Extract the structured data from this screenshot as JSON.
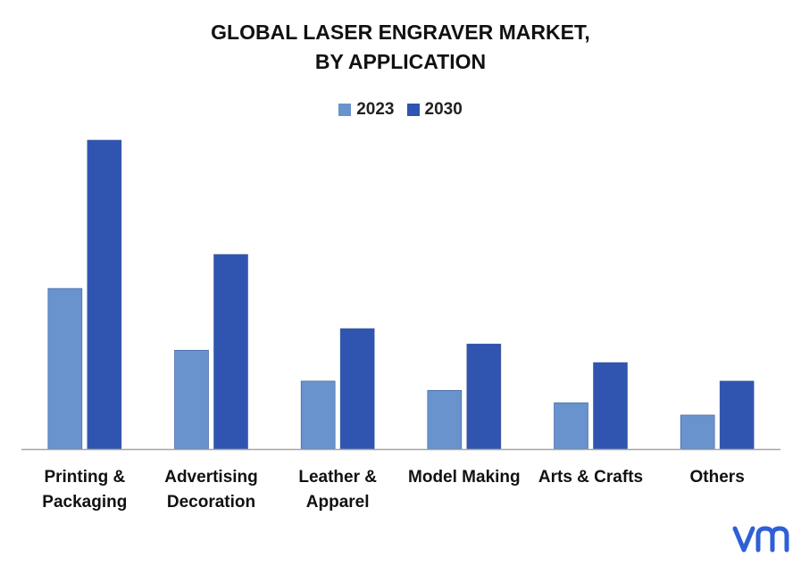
{
  "chart_data": {
    "type": "bar",
    "title_lines": [
      "GLOBAL LASER ENGRAVER MARKET,",
      "BY APPLICATION"
    ],
    "categories": [
      [
        "Printing &",
        "Packaging"
      ],
      [
        "Advertising",
        "Decoration"
      ],
      [
        "Leather &",
        "Apparel"
      ],
      [
        "Model Making"
      ],
      [
        "Arts & Crafts"
      ],
      [
        "Others"
      ]
    ],
    "series": [
      {
        "name": "2023",
        "color": "#6893cc",
        "values": [
          52,
          32,
          22,
          19,
          15,
          11
        ]
      },
      {
        "name": "2030",
        "color": "#2f55b0",
        "values": [
          100,
          63,
          39,
          34,
          28,
          22
        ]
      }
    ],
    "ylim": [
      0,
      100
    ],
    "grid": false,
    "legend_position": "top-center"
  },
  "brand": {
    "logo_icon": "vmr-logo-icon",
    "logo_color": "#2e5fd6"
  }
}
